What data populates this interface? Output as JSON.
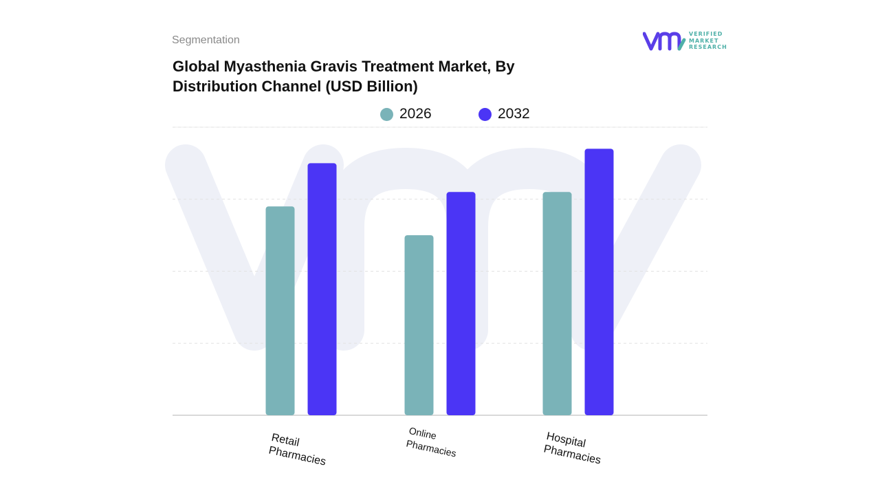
{
  "header": {
    "segment_label": "Segmentation",
    "title": "Global Myasthenia Gravis Treatment Market, By Distribution Channel (USD Billion)"
  },
  "logo": {
    "line1": "VERIFIED",
    "line2": "MARKET",
    "line3": "RESEARCH",
    "icon": "vmr-logo-icon",
    "colors": {
      "mark": "#5a3ee8",
      "text": "#4fb0a8"
    }
  },
  "legend": {
    "items": [
      {
        "label": "2026",
        "color": "#7ab3b8"
      },
      {
        "label": "2032",
        "color": "#4b35f5"
      }
    ]
  },
  "chart_data": {
    "type": "bar",
    "categories": [
      "Retail\nPharmacies",
      "Online\nPharmacies",
      "Hospital\nPharmacies"
    ],
    "series": [
      {
        "name": "2026",
        "values": [
          2.9,
          2.5,
          3.1
        ],
        "color": "#7ab3b8"
      },
      {
        "name": "2032",
        "values": [
          3.5,
          3.1,
          3.7
        ],
        "color": "#4b35f5"
      }
    ],
    "title": "Global Myasthenia Gravis Treatment Market, By Distribution Channel (USD Billion)",
    "xlabel": "",
    "ylabel": "",
    "ylim": [
      0,
      4
    ],
    "grid": true,
    "legend_position": "top-center"
  }
}
